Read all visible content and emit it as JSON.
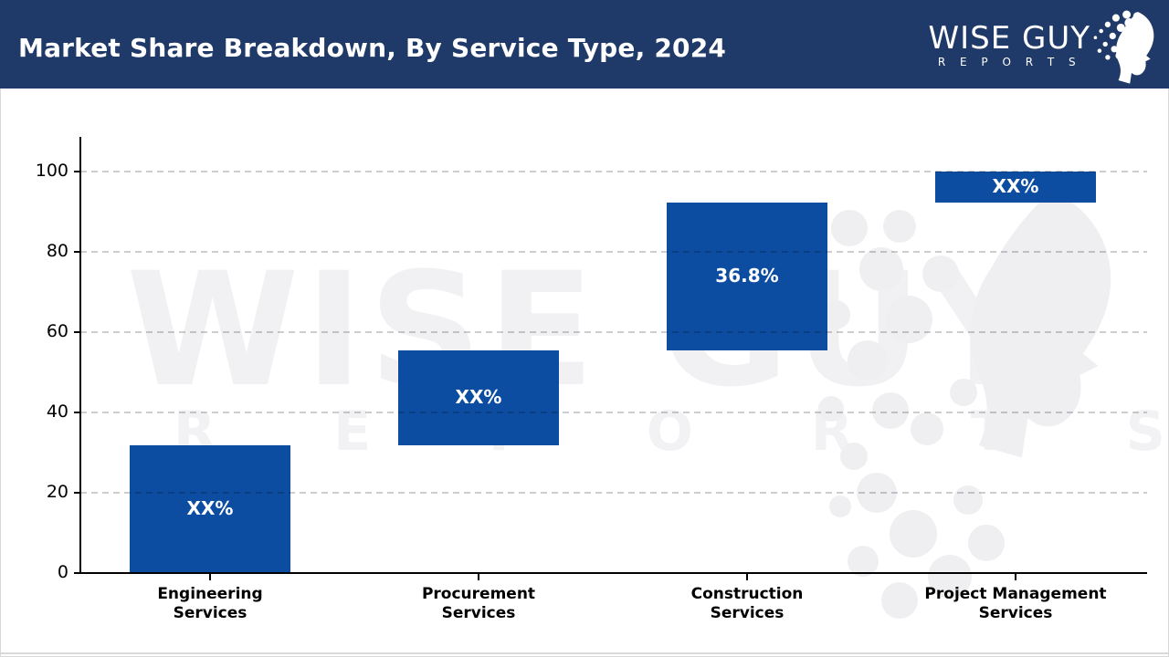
{
  "header": {
    "title": "Market Share Breakdown, By Service Type, 2024",
    "logo_line1": "WISE GUY",
    "logo_line2": "R E P O R T S",
    "logo_face_icon": "dotted-face-profile",
    "bg_color": "#1f3a68"
  },
  "watermark": {
    "line1": "WISE GUY",
    "line2": "R E P O R T S"
  },
  "chart_data": {
    "type": "bar",
    "subtype": "waterfall",
    "title": "Market Share Breakdown, By Service Type, 2024",
    "categories": [
      "Engineering Services",
      "Procurement Services",
      "Construction Services",
      "Project Management Services"
    ],
    "category_lines": [
      [
        "Engineering",
        "Services"
      ],
      [
        "Procurement",
        "Services"
      ],
      [
        "Construction",
        "Services"
      ],
      [
        "Project Management",
        "Services"
      ]
    ],
    "segments": [
      {
        "category": "Engineering Services",
        "start": 0,
        "end": 31.8,
        "label": "XX%"
      },
      {
        "category": "Procurement Services",
        "start": 31.8,
        "end": 55.5,
        "label": "XX%"
      },
      {
        "category": "Construction Services",
        "start": 55.5,
        "end": 92.3,
        "label": "36.8%"
      },
      {
        "category": "Project Management Services",
        "start": 92.3,
        "end": 100,
        "label": "XX%"
      }
    ],
    "yticks": [
      0,
      20,
      40,
      60,
      80,
      100
    ],
    "ylim": [
      0,
      100
    ],
    "grid": "dashed-horizontal",
    "legend": "none",
    "bar_color": "#0c4da2",
    "bar_label_color": "#ffffff",
    "axis_color": "#000000",
    "gridline_color": "rgba(0,0,0,0.22)"
  }
}
